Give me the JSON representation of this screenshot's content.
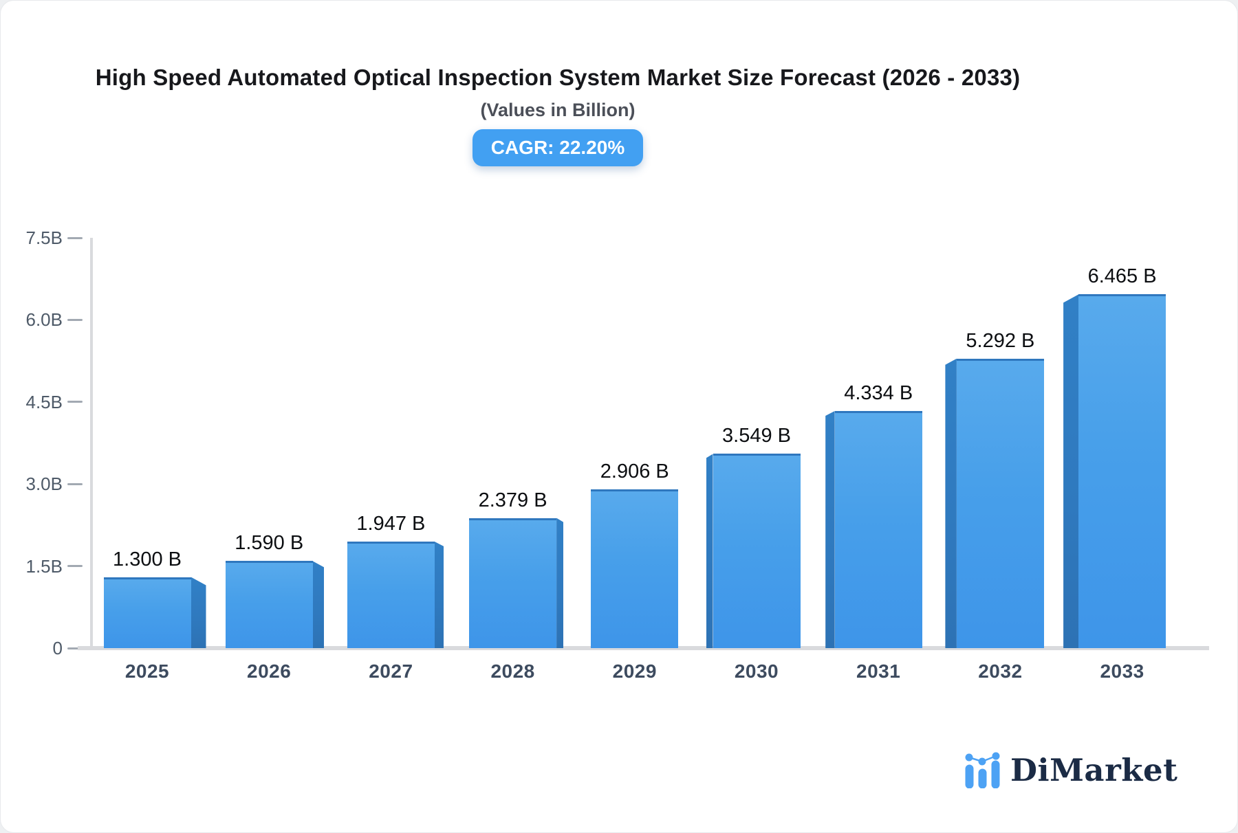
{
  "header": {
    "title": "High Speed Automated Optical Inspection System Market Size Forecast (2026 - 2033)",
    "subtitle": "(Values in Billion)",
    "cagr_badge": "CAGR: 22.20%"
  },
  "badge": {
    "bg": "#42a0f2",
    "text_color": "#ffffff"
  },
  "chart_data": {
    "type": "bar",
    "title": "High Speed Automated Optical Inspection System Market Size Forecast (2026 - 2033)",
    "subtitle": "(Values in Billion)",
    "categories": [
      "2025",
      "2026",
      "2027",
      "2028",
      "2029",
      "2030",
      "2031",
      "2032",
      "2033"
    ],
    "values": [
      1.3,
      1.59,
      1.947,
      2.379,
      2.906,
      3.549,
      4.334,
      5.292,
      6.465
    ],
    "value_labels": [
      "1.300 B",
      "1.590 B",
      "1.947 B",
      "2.379 B",
      "2.906 B",
      "3.549 B",
      "4.334 B",
      "5.292 B",
      "6.465 B"
    ],
    "yticks": [
      {
        "label": "0",
        "value": 0
      },
      {
        "label": "1.5B",
        "value": 1.5
      },
      {
        "label": "3.0B",
        "value": 3.0
      },
      {
        "label": "4.5B",
        "value": 4.5
      },
      {
        "label": "6.0B",
        "value": 6.0
      },
      {
        "label": "7.5B",
        "value": 7.5
      }
    ],
    "ylim": [
      0,
      7.5
    ],
    "unit": "Billion",
    "grid": "off",
    "legend": "none",
    "style_3d": true,
    "colors": {
      "bar_face_top": "#58aaec",
      "bar_face_bottom": "#3e95e9",
      "bar_side": "#2f79be",
      "axis_line": "#d9dadd",
      "tick_label": "#4e5a68",
      "x_label": "#3d4b5f",
      "value_label": "#0c0e11"
    }
  },
  "logo": {
    "text": "DiMarket",
    "icon": "bar-chart-logo-icon",
    "icon_color": "#4da2f4",
    "text_color": "#1b2b45"
  }
}
